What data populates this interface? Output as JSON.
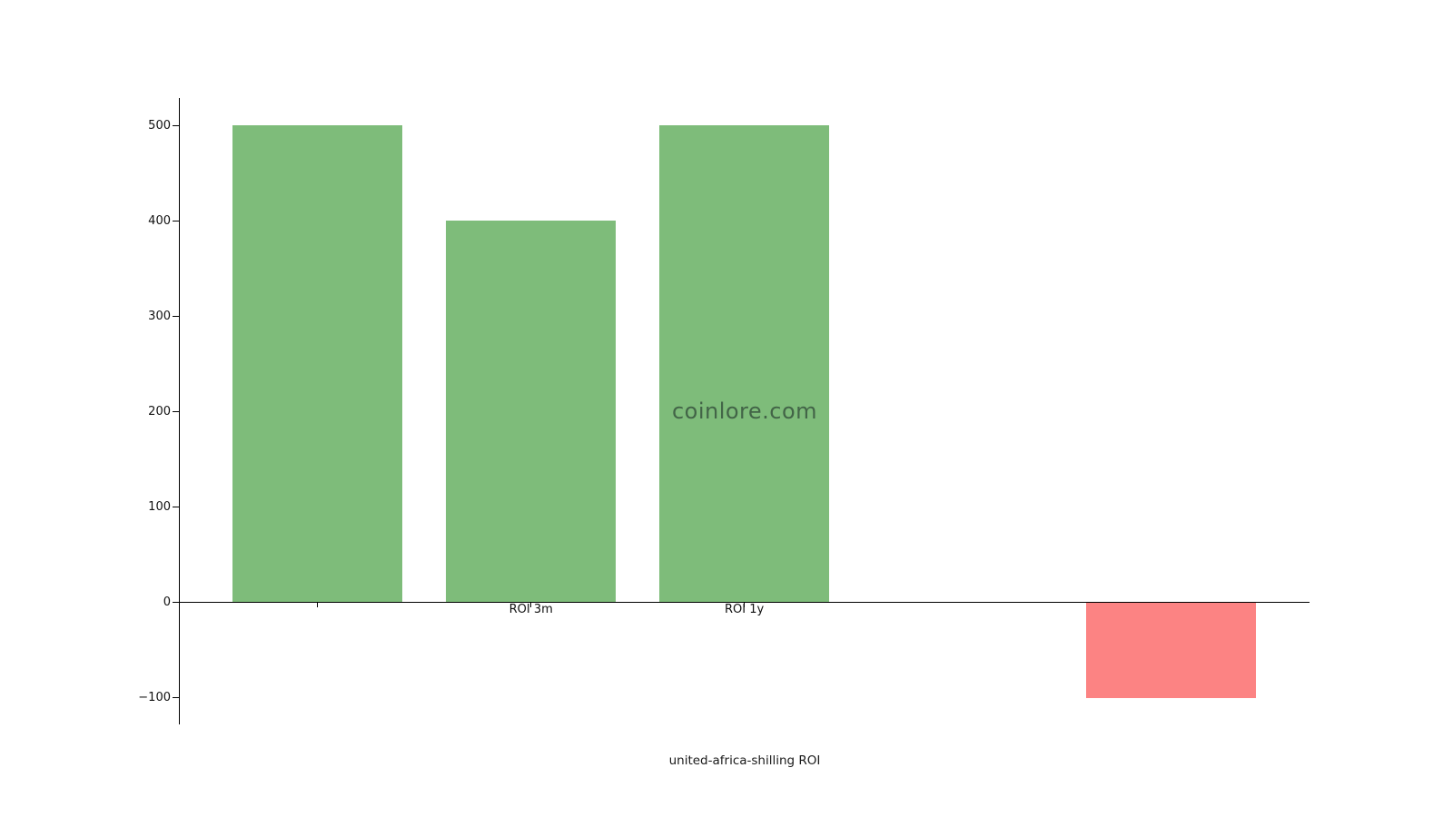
{
  "chart_data": {
    "type": "bar",
    "title": "united-africa-shilling ROI",
    "watermark": "coinlore.com",
    "y_ticks": [
      500,
      400,
      300,
      200,
      100,
      0,
      -100
    ],
    "y_tick_labels": [
      "500",
      "400",
      "300",
      "200",
      "100",
      "0",
      "−100"
    ],
    "x_tick_labels": [
      "",
      "ROI 3m",
      "ROI 1y"
    ],
    "bars": [
      {
        "slot": 0,
        "label": "",
        "value": 500,
        "color_key": "positive"
      },
      {
        "slot": 1,
        "label": "ROI 3m",
        "value": 400,
        "color_key": "positive"
      },
      {
        "slot": 2,
        "label": "ROI 1y",
        "value": 500,
        "color_key": "positive"
      },
      {
        "slot": 4,
        "label": "",
        "value": -100,
        "color_key": "negative"
      }
    ],
    "colors": {
      "positive": "#7ebc7a",
      "negative": "#fc8383"
    },
    "ylim": [
      -128,
      528
    ],
    "grid": false
  }
}
